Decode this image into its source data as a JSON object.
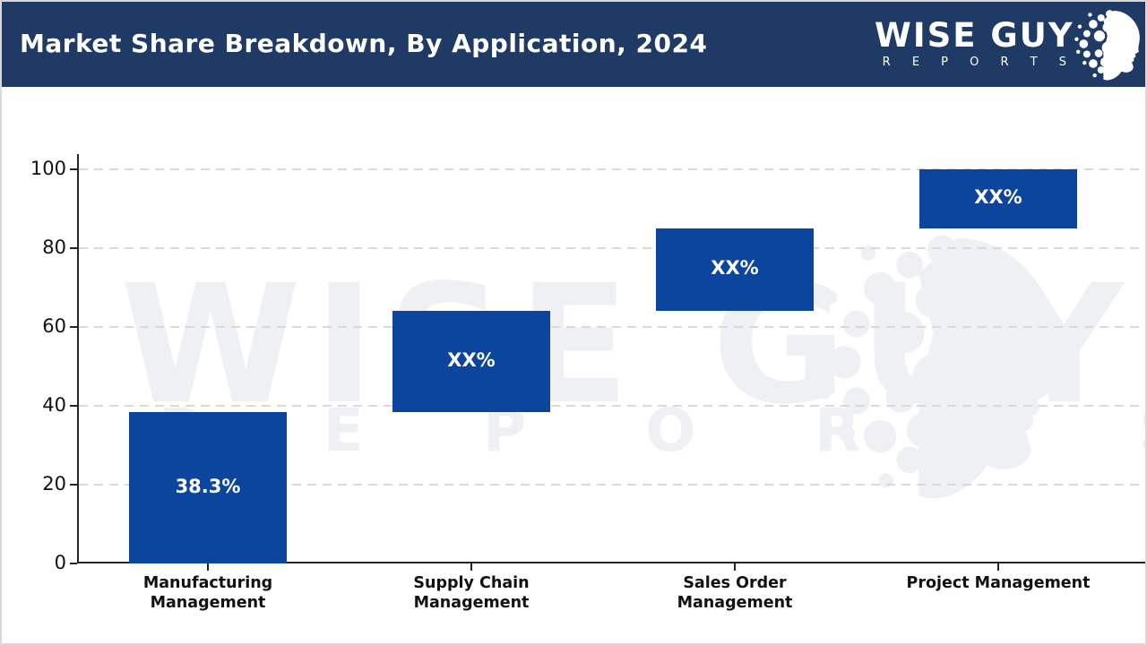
{
  "header": {
    "title": "Market Share Breakdown, By Application, 2024",
    "logo": {
      "line1": "WISE GUY",
      "line2": "R E P O R T S",
      "icon": "head-dots-icon"
    }
  },
  "watermark": {
    "line1": "WISE GUY",
    "line2": "R E P O R T S",
    "icon": "head-dots-icon"
  },
  "chart_data": {
    "type": "bar",
    "subtype": "waterfall",
    "title": "Market Share Breakdown, By Application, 2024",
    "categories": [
      "Manufacturing\nManagement",
      "Supply Chain\nManagement",
      "Sales Order\nManagement",
      "Project Management"
    ],
    "series": [
      {
        "name": "Market share (%)",
        "segments": [
          {
            "category": "Manufacturing Management",
            "start": 0,
            "end": 38.3,
            "label": "38.3%"
          },
          {
            "category": "Supply Chain Management",
            "start": 38.3,
            "end": 64,
            "label": "XX%"
          },
          {
            "category": "Sales Order Management",
            "start": 64,
            "end": 85,
            "label": "XX%"
          },
          {
            "category": "Project Management",
            "start": 85,
            "end": 100,
            "label": "XX%"
          }
        ]
      }
    ],
    "xlabel": "",
    "ylabel": "",
    "ylim": [
      0,
      104
    ],
    "yticks": [
      0,
      20,
      40,
      60,
      80,
      100
    ],
    "grid": "horizontal-dashed",
    "legend": "none",
    "bar_color": "#0b459e",
    "bar_label_color": "#ffffff"
  },
  "colors": {
    "header_bg": "#203a66",
    "bar": "#0b459e",
    "grid": "#d9d9d9",
    "axis": "#262626",
    "watermark": "#eff0f3",
    "frame_border": "#d8d8d8"
  }
}
